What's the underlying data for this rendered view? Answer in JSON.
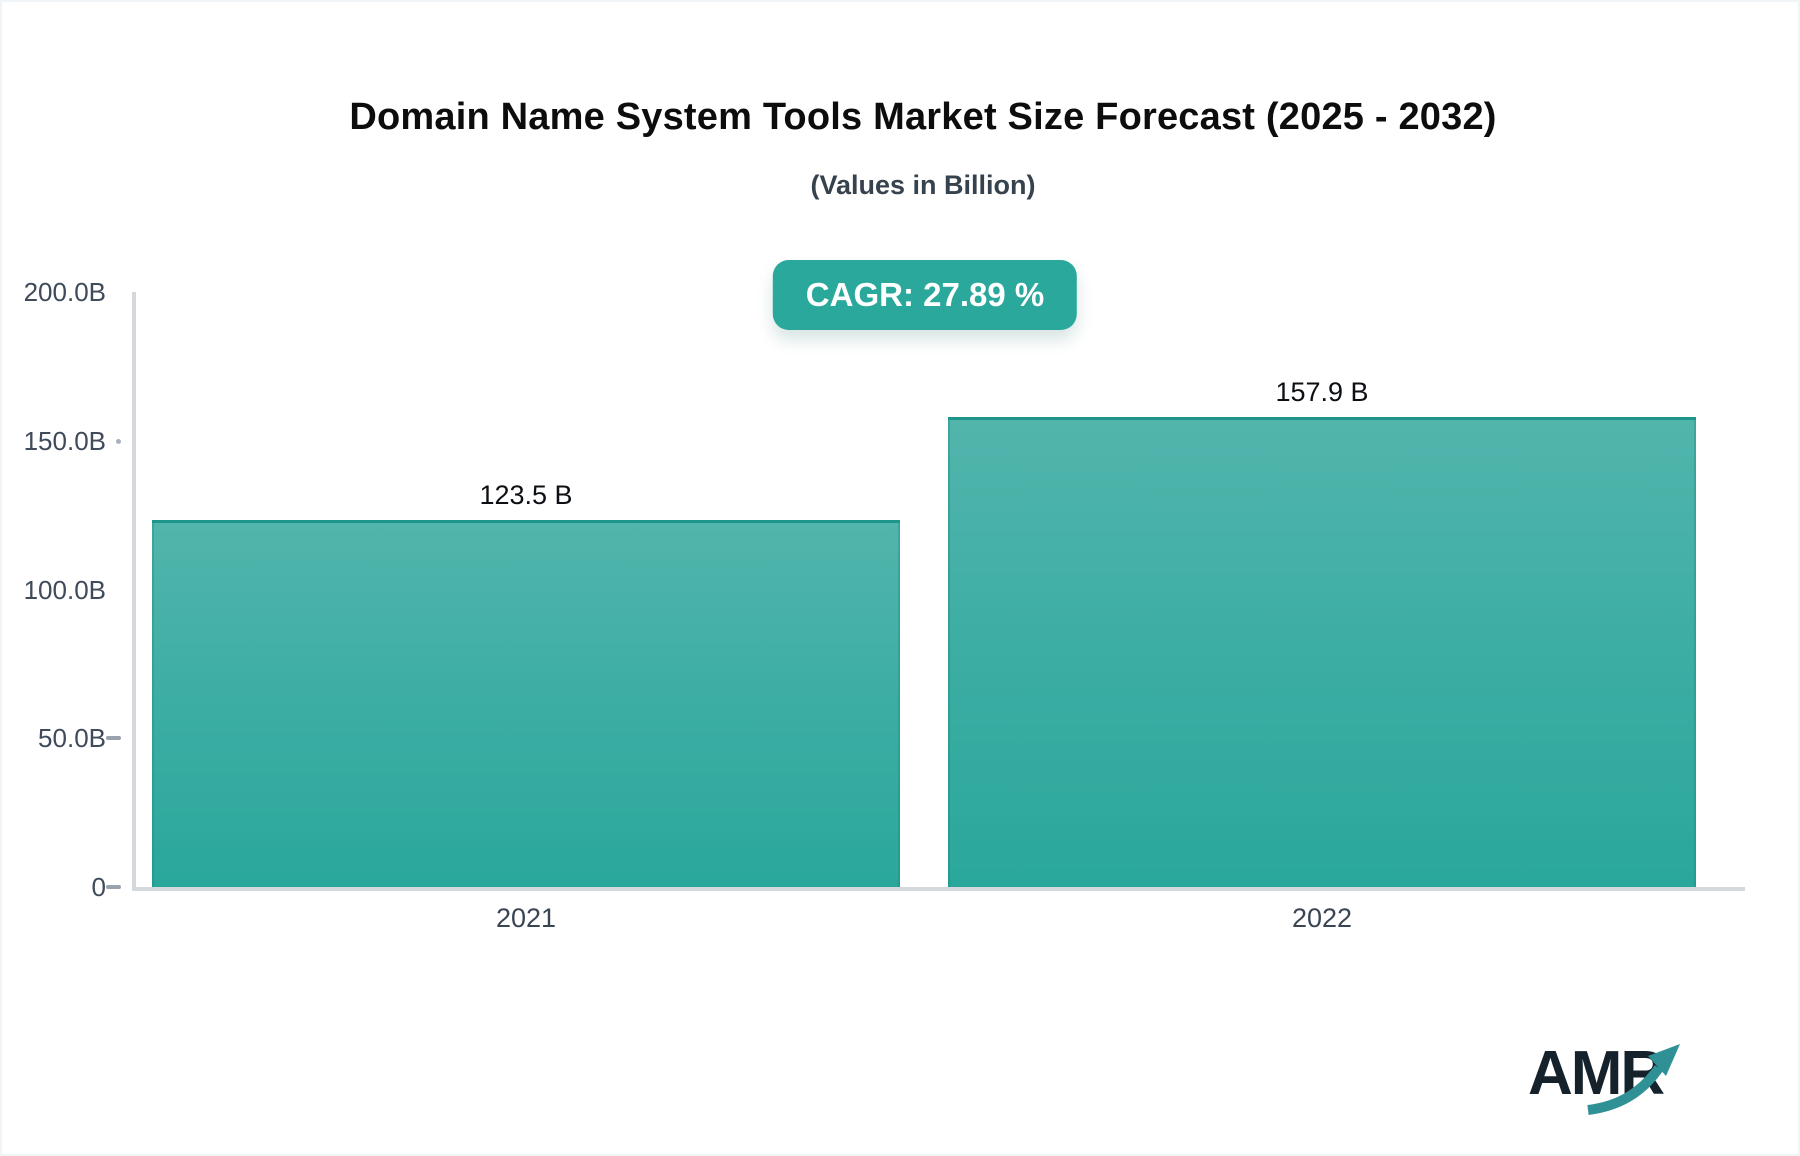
{
  "chart_data": {
    "type": "bar",
    "title": "Domain Name System Tools Market Size Forecast (2025 - 2032)",
    "subtitle": "(Values in Billion)",
    "cagr_badge": "CAGR: 27.89 %",
    "unit": "Billion",
    "categories": [
      "2021",
      "2022"
    ],
    "values": [
      123.5,
      157.9
    ],
    "value_labels": [
      "123.5 B",
      "157.9 B"
    ],
    "ylim": [
      0,
      200
    ],
    "yticks": [
      {
        "label": "200.0B",
        "value": 200
      },
      {
        "label": "150.0B",
        "value": 150
      },
      {
        "label": "100.0B",
        "value": 100
      },
      {
        "label": "50.0B",
        "value": 50
      },
      {
        "label": "0",
        "value": 0
      }
    ],
    "grid": false,
    "legend_position": "none",
    "colors": {
      "bar_gradient_top": "#52b5ac",
      "bar_gradient_bottom": "#2aa79b",
      "bar_top_border": "#1e968b",
      "badge_background": "#2aa89c",
      "badge_text": "#ffffff",
      "axis_line": "#d4d7dc",
      "tick_label": "#3f4a5a",
      "title_text": "#0d0d0d",
      "subtitle_text": "#37424f"
    }
  },
  "logo": {
    "text": "AMR",
    "text_color": "#16222b",
    "arrow_color": "#2f9196"
  }
}
